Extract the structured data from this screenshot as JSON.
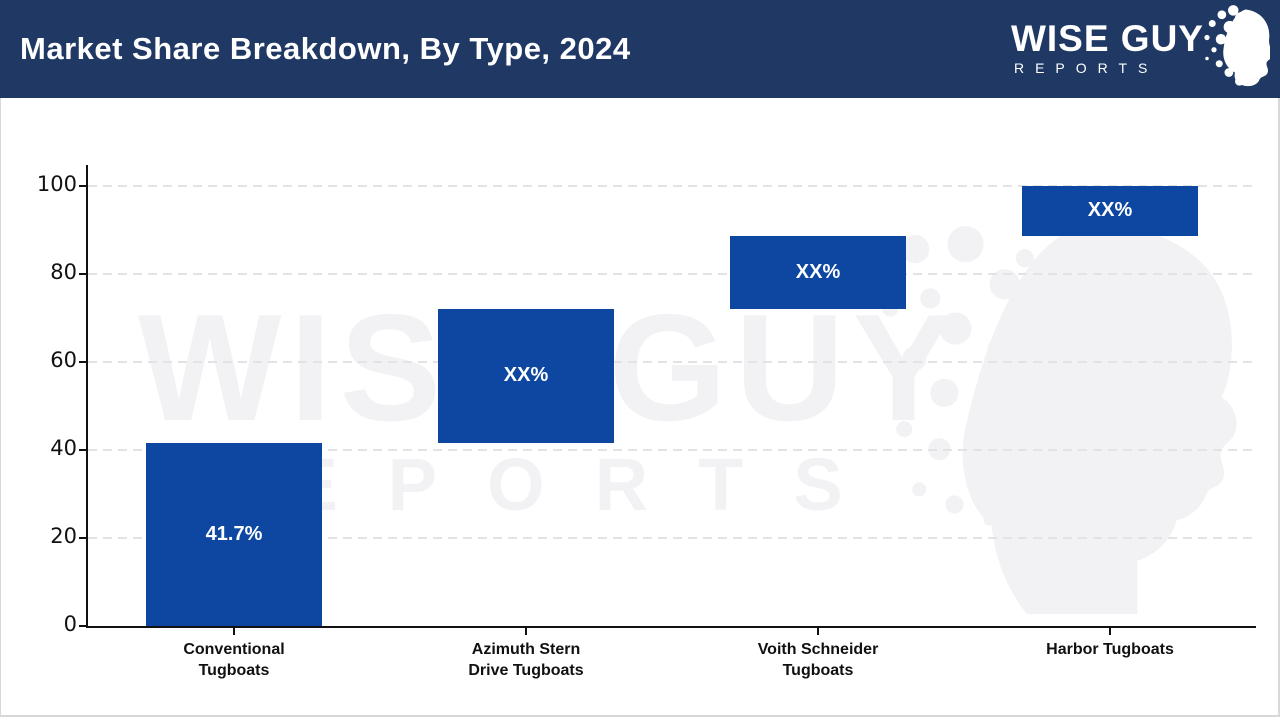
{
  "header": {
    "title": "Market Share Breakdown, By Type, 2024",
    "logo": {
      "brand_line1": "WISE GUY",
      "brand_line2": "REPORTS"
    }
  },
  "watermark": {
    "line1": "WISE GUY",
    "line2": "REPORTS"
  },
  "colors": {
    "header_bg": "#1f3864",
    "title_text": "#ffffff",
    "bar": "#0d47a1",
    "bar_label": "#ffffff",
    "axis": "#111111",
    "gridline": "#e3e3e6",
    "watermark": "#f2f2f5",
    "page_border": "#d8d8d8"
  },
  "chart_data": {
    "type": "bar",
    "subtype": "waterfall",
    "title": "Market Share Breakdown, By Type, 2024",
    "categories": [
      [
        "Conventional",
        "Tugboats"
      ],
      [
        "Azimuth Stern",
        "Drive Tugboats"
      ],
      [
        "Voith Schneider",
        "Tugboats"
      ],
      [
        "Harbor Tugboats"
      ]
    ],
    "segments": [
      {
        "category": "Conventional Tugboats",
        "start": 0,
        "end": 41.7,
        "label": "41.7%"
      },
      {
        "category": "Azimuth Stern Drive Tugboats",
        "start": 41.7,
        "end": 72.1,
        "label": "XX%"
      },
      {
        "category": "Voith Schneider Tugboats",
        "start": 72.1,
        "end": 88.7,
        "label": "XX%"
      },
      {
        "category": "Harbor Tugboats",
        "start": 88.7,
        "end": 100,
        "label": "XX%"
      }
    ],
    "xlabel": "",
    "ylabel": "",
    "yticks": [
      0,
      20,
      40,
      60,
      80,
      100
    ],
    "ylim": [
      0,
      104
    ],
    "grid": "horizontal dashed",
    "legend": "none",
    "bar_color": "#0d47a1",
    "bar_label_color": "#ffffff"
  }
}
